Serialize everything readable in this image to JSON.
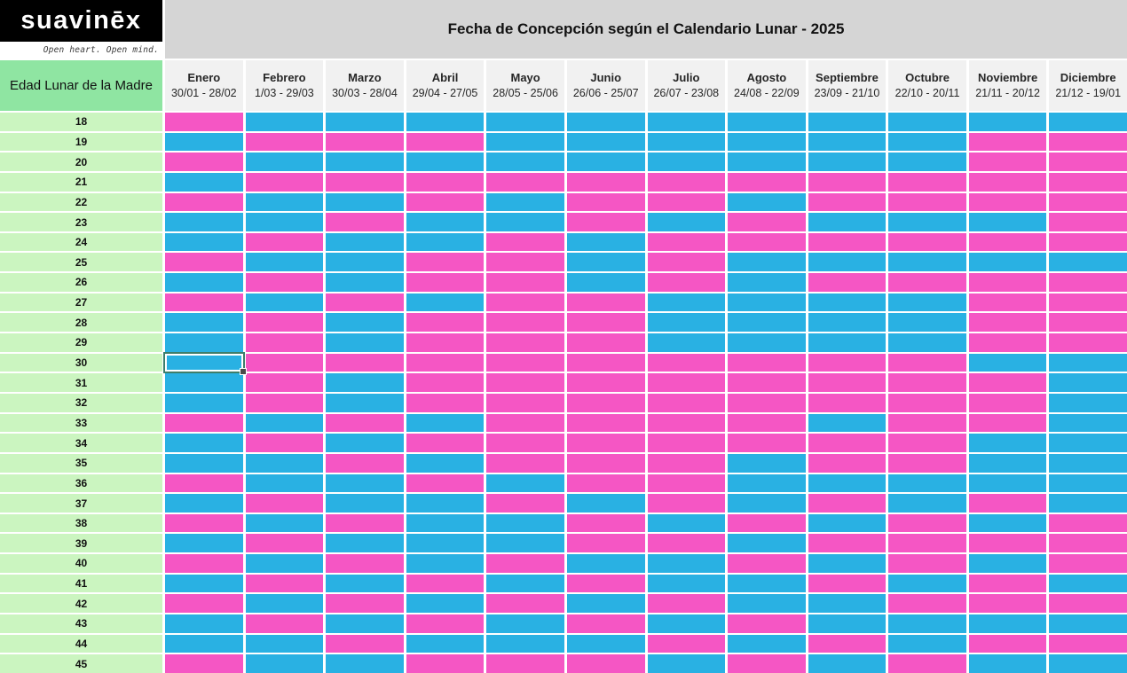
{
  "brand": {
    "logo_text": "suavinēx",
    "tagline": "Open heart. Open mind."
  },
  "header": {
    "title": "Fecha de Concepción según el Calendario Lunar - 2025",
    "row_header": "Edad Lunar de la Madre"
  },
  "colors": {
    "pink": "#f556c4",
    "blue": "#29b1e3",
    "age_column_bg": "#cbf5c0",
    "corner_bg": "#8fe5a2",
    "title_bg": "#d5d5d5",
    "month_header_bg": "#f1f1f1",
    "selection_border": "#3d7e6b"
  },
  "selection": {
    "age": 30,
    "month_index": 0
  },
  "chart_data": {
    "type": "heatmap",
    "title": "Fecha de Concepción según el Calendario Lunar - 2025",
    "y_label": "Edad Lunar de la Madre",
    "cell_values": {
      "P": "pink",
      "B": "blue"
    },
    "months": [
      {
        "name": "Enero",
        "range": "30/01 - 28/02"
      },
      {
        "name": "Febrero",
        "range": "1/03 - 29/03"
      },
      {
        "name": "Marzo",
        "range": "30/03 - 28/04"
      },
      {
        "name": "Abril",
        "range": "29/04 - 27/05"
      },
      {
        "name": "Mayo",
        "range": "28/05 - 25/06"
      },
      {
        "name": "Junio",
        "range": "26/06 - 25/07"
      },
      {
        "name": "Julio",
        "range": "26/07 - 23/08"
      },
      {
        "name": "Agosto",
        "range": "24/08 - 22/09"
      },
      {
        "name": "Septiembre",
        "range": "23/09 - 21/10"
      },
      {
        "name": "Octubre",
        "range": "22/10 - 20/11"
      },
      {
        "name": "Noviembre",
        "range": "21/11 - 20/12"
      },
      {
        "name": "Diciembre",
        "range": "21/12 - 19/01"
      }
    ],
    "rows": [
      {
        "age": 18,
        "pattern": "PBBBBBBBBBBB"
      },
      {
        "age": 19,
        "pattern": "BPPPBBBBBBPP"
      },
      {
        "age": 20,
        "pattern": "PBBBBBBBBBPP"
      },
      {
        "age": 21,
        "pattern": "BPPPPPPPPPPP"
      },
      {
        "age": 22,
        "pattern": "PBBPBPPBPPPP"
      },
      {
        "age": 23,
        "pattern": "BBPBBPBPBBBP"
      },
      {
        "age": 24,
        "pattern": "BPBBPBPPPPPP"
      },
      {
        "age": 25,
        "pattern": "PBBPPBPBBBBB"
      },
      {
        "age": 26,
        "pattern": "BPBPPBPBPPPP"
      },
      {
        "age": 27,
        "pattern": "PBPBPPBBBBPP"
      },
      {
        "age": 28,
        "pattern": "BPBPPPBBBBPP"
      },
      {
        "age": 29,
        "pattern": "BPBPPPBBBBPP"
      },
      {
        "age": 30,
        "pattern": "BPPPPPPPPPBB"
      },
      {
        "age": 31,
        "pattern": "BPBPPPPPPPPB"
      },
      {
        "age": 32,
        "pattern": "BPBPPPPPPPPB"
      },
      {
        "age": 33,
        "pattern": "PBPBPPPPBPPB"
      },
      {
        "age": 34,
        "pattern": "BPBPPPPPPPBB"
      },
      {
        "age": 35,
        "pattern": "BBPBPPPBPPBB"
      },
      {
        "age": 36,
        "pattern": "PBBPBPPBBBBB"
      },
      {
        "age": 37,
        "pattern": "BPBBPBPBPBPB"
      },
      {
        "age": 38,
        "pattern": "PBPBBPBPBPBP"
      },
      {
        "age": 39,
        "pattern": "BPBBBPPBPPPP"
      },
      {
        "age": 40,
        "pattern": "PBPBPBBPBPBP"
      },
      {
        "age": 41,
        "pattern": "BPBPBPBBPBPB"
      },
      {
        "age": 42,
        "pattern": "PBPBPBPBBPPP"
      },
      {
        "age": 43,
        "pattern": "BPBPBPBPBBBB"
      },
      {
        "age": 44,
        "pattern": "BBPBBBPBPBPP"
      },
      {
        "age": 45,
        "pattern": "PBBPPPBPBPBB"
      }
    ]
  }
}
